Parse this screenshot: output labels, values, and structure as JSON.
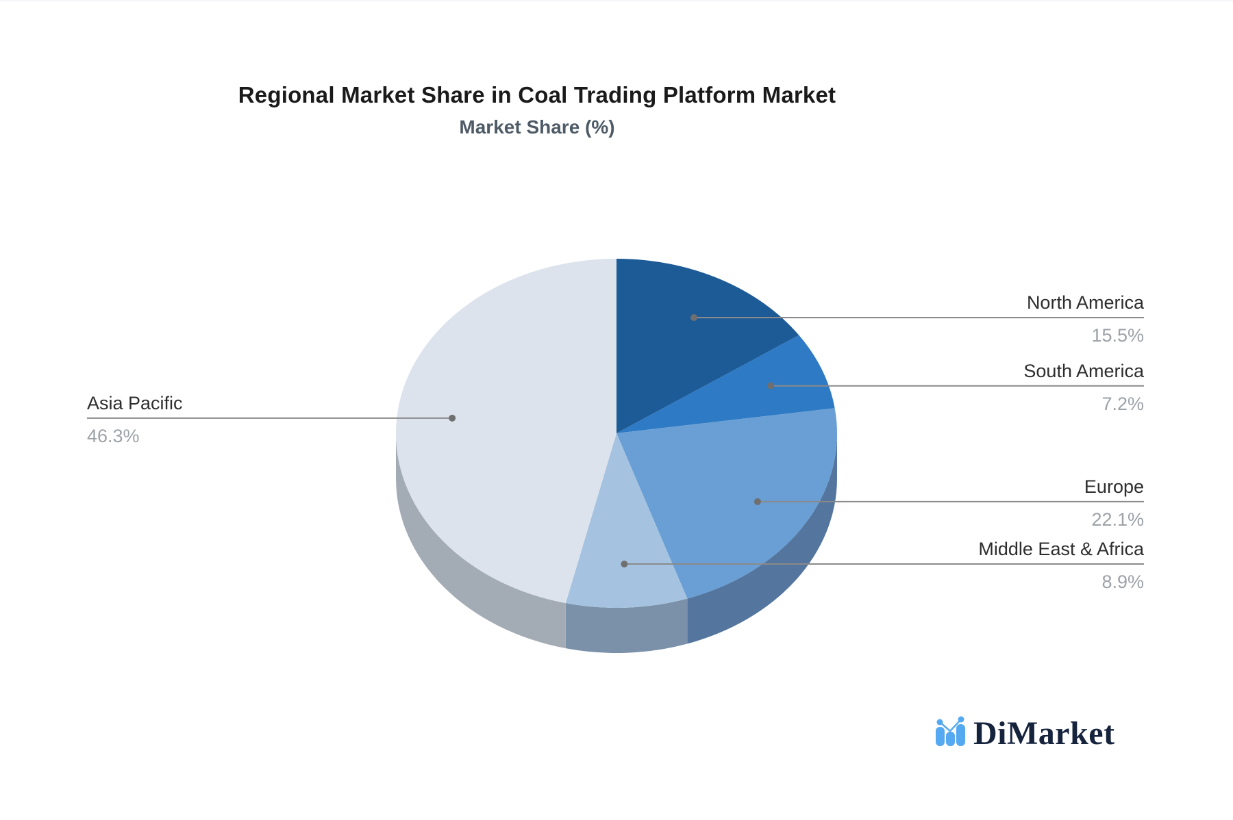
{
  "page": {
    "title": "Regional Market Share in Coal Trading Platform Market",
    "subtitle": "Market Share (%)"
  },
  "chart_data": {
    "type": "pie",
    "style": "3d-pie",
    "title": "Regional Market Share in Coal Trading Platform Market",
    "subtitle": "Market Share (%)",
    "unit": "%",
    "start_angle": "12-o-clock, clockwise",
    "legend_position": "callout-labels",
    "total": 100.0,
    "slices": [
      {
        "name": "North America",
        "value": 15.5,
        "display": "15.5%",
        "color": "#1d5b97",
        "side_color": "#16466f",
        "label_side": "right"
      },
      {
        "name": "South America",
        "value": 7.2,
        "display": "7.2%",
        "color": "#2e7ac4",
        "side_color": "#245e96",
        "label_side": "right"
      },
      {
        "name": "Europe",
        "value": 22.1,
        "display": "22.1%",
        "color": "#699fd4",
        "side_color": "#53759e",
        "label_side": "right"
      },
      {
        "name": "Middle East & Africa",
        "value": 8.9,
        "display": "8.9%",
        "color": "#a5c3e0",
        "side_color": "#7b91a9",
        "label_side": "right"
      },
      {
        "name": "Asia Pacific",
        "value": 46.3,
        "display": "46.3%",
        "color": "#dce3ed",
        "side_color": "#a3abb5",
        "label_side": "left"
      }
    ]
  },
  "branding": {
    "logo_text": "DiMarket",
    "logo_icon": "bar-chart-trend-icon",
    "logo_icon_color": "#55a9f1",
    "logo_text_color": "#15233c"
  },
  "colors": {
    "background": "#ffffff",
    "title_text": "#1a1a1a",
    "subtitle_text": "#4e5b66",
    "label_text": "#2d2d2d",
    "value_text": "#9da2a8",
    "leader_line": "#8a8a8a",
    "leader_dot": "#6f6f6f"
  }
}
